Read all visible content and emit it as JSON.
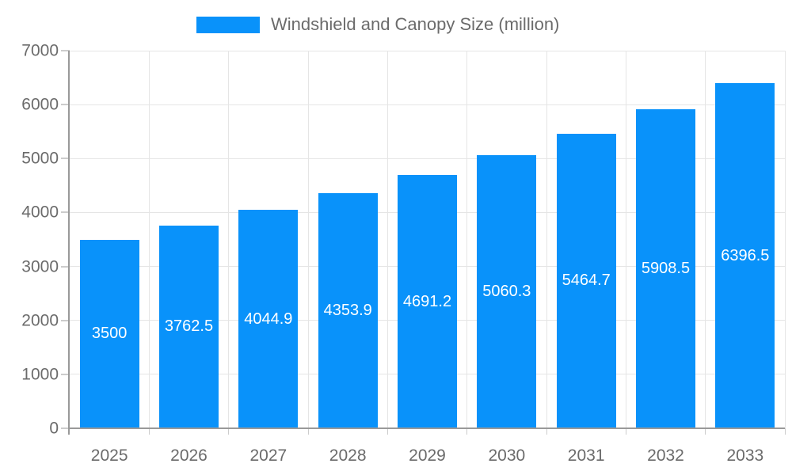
{
  "legend": {
    "label": "Windshield and Canopy Size (million)",
    "swatch_color": "#0992fa"
  },
  "chart_data": {
    "type": "bar",
    "title": "Windshield and Canopy Size (million)",
    "categories": [
      "2025",
      "2026",
      "2027",
      "2028",
      "2029",
      "2030",
      "2031",
      "2032",
      "2033"
    ],
    "values": [
      3500,
      3762.5,
      4044.9,
      4353.9,
      4691.2,
      5060.3,
      5464.7,
      5908.5,
      6396.5
    ],
    "bar_labels": [
      "3500",
      "3762.5",
      "4044.9",
      "4353.9",
      "4691.2",
      "5060.3",
      "5464.7",
      "5908.5",
      "6396.5"
    ],
    "xlabel": "",
    "ylabel": "",
    "ylim": [
      0,
      7000
    ],
    "ytick_step": 1000,
    "yticks": [
      "0",
      "1000",
      "2000",
      "3000",
      "4000",
      "5000",
      "6000",
      "7000"
    ],
    "grid": true,
    "legend_position": "top"
  },
  "colors": {
    "bar": "#0992fa",
    "grid": "#e5e5e5",
    "tick": "#cccccc",
    "axis": "#999999",
    "text": "#6b6b6b",
    "bar_label": "#ffffff",
    "background": "#ffffff"
  }
}
